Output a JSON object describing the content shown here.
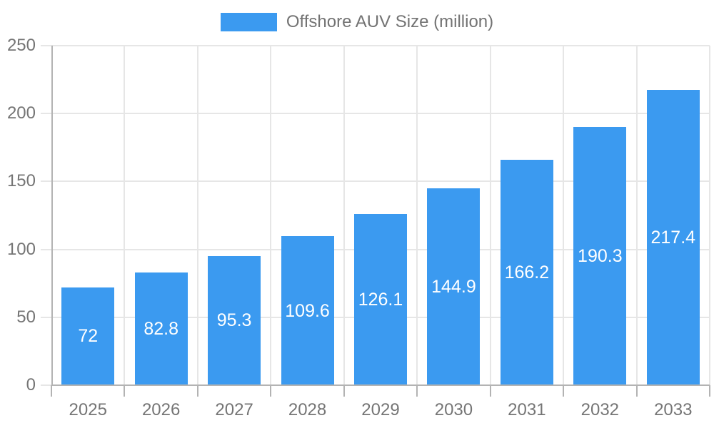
{
  "chart_data": {
    "type": "bar",
    "title": "",
    "legend": "Offshore AUV Size (million)",
    "legend_position": "top",
    "categories": [
      "2025",
      "2026",
      "2027",
      "2028",
      "2029",
      "2030",
      "2031",
      "2032",
      "2033"
    ],
    "values": [
      72,
      82.8,
      95.3,
      109.6,
      126.1,
      144.9,
      166.2,
      190.3,
      217.4
    ],
    "value_labels": [
      "72",
      "82.8",
      "95.3",
      "109.6",
      "126.1",
      "144.9",
      "166.2",
      "190.3",
      "217.4"
    ],
    "xlabel": "",
    "ylabel": "",
    "ylim": [
      0,
      250
    ],
    "yticks": [
      0,
      50,
      100,
      150,
      200,
      250
    ],
    "grid": true,
    "colors": {
      "bar": "#3b9af0",
      "value_label": "#ffffff",
      "grid_line": "#e6e6e6",
      "axis_line": "#b3b3b3",
      "tick_label": "#757575",
      "legend_text": "#737373",
      "background": "#ffffff"
    }
  }
}
